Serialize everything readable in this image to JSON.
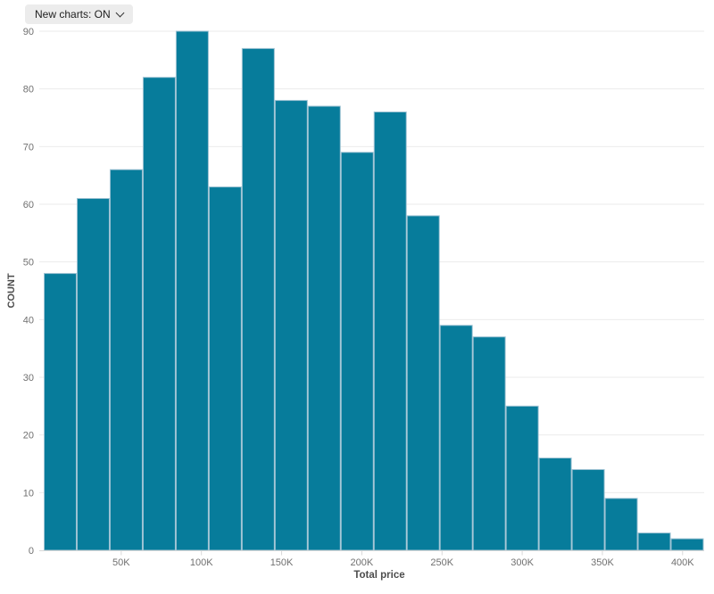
{
  "controls": {
    "new_charts_dropdown": {
      "label": "New charts: ON",
      "state": "ON"
    }
  },
  "chart_data": {
    "type": "bar",
    "subtype": "histogram",
    "title": "",
    "xlabel": "Total price",
    "ylabel": "COUNT",
    "bin_width": 20000,
    "bin_starts": [
      0,
      20000,
      40000,
      60000,
      80000,
      100000,
      120000,
      140000,
      160000,
      180000,
      200000,
      220000,
      240000,
      260000,
      280000,
      300000,
      320000,
      340000,
      360000,
      380000
    ],
    "values": [
      48,
      61,
      66,
      82,
      90,
      63,
      87,
      78,
      77,
      69,
      76,
      58,
      39,
      37,
      25,
      16,
      14,
      9,
      3,
      2
    ],
    "x_ticks": [
      {
        "value": 50000,
        "label": "50K"
      },
      {
        "value": 100000,
        "label": "100K"
      },
      {
        "value": 150000,
        "label": "150K"
      },
      {
        "value": 200000,
        "label": "200K"
      },
      {
        "value": 250000,
        "label": "250K"
      },
      {
        "value": 300000,
        "label": "300K"
      },
      {
        "value": 350000,
        "label": "350K"
      },
      {
        "value": 400000,
        "label": "400K"
      }
    ],
    "y_ticks": [
      0,
      10,
      20,
      30,
      40,
      50,
      60,
      70,
      80,
      90
    ],
    "ylim": [
      0,
      90
    ],
    "xlim": [
      0,
      400000
    ],
    "grid": true,
    "legend": "none",
    "colors": {
      "bar_fill": "#077c9b",
      "bar_stroke": "#9dc2d3",
      "gridline": "#ebebeb",
      "axis_line": "#d8d8d8",
      "tick_label": "#707070",
      "axis_title": "#4d4d4d"
    }
  }
}
